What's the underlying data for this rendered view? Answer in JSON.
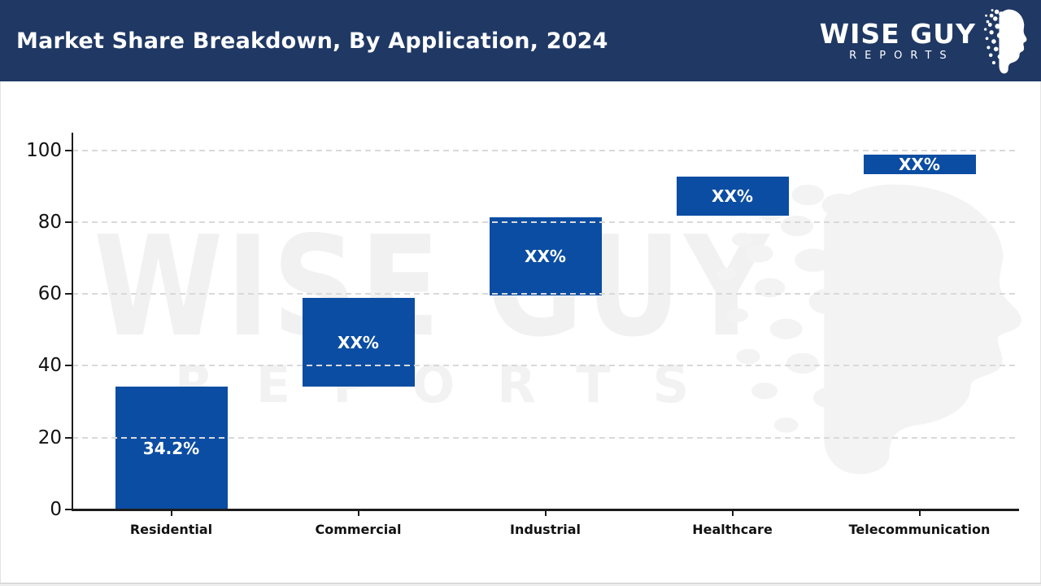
{
  "header": {
    "title": "Market Share Breakdown, By Application, 2024",
    "logo": {
      "wordmark": "WISE GUY",
      "subtext": "REPORTS"
    }
  },
  "watermark": {
    "wordmark": "WISE GUY",
    "subtext": "REPORTS"
  },
  "colors": {
    "header_bg": "#1f3864",
    "bar": "#0b4da2",
    "bar_label": "#ffffff",
    "axis": "#1c1c1c",
    "gridline": "#d9d9d9",
    "tick_text": "#111111",
    "watermark": "#f1f1f1"
  },
  "chart_data": {
    "type": "bar",
    "subtype": "floating-waterfall",
    "title": "Market Share Breakdown, By Application, 2024",
    "xlabel": "",
    "ylabel": "",
    "ylim": [
      0,
      105
    ],
    "yticks": [
      0,
      20,
      40,
      60,
      80,
      100
    ],
    "grid": "horizontal-dashed",
    "legend": "none",
    "categories": [
      "Residential",
      "Commercial",
      "Industrial",
      "Healthcare",
      "Telecommunication"
    ],
    "segments": [
      {
        "category": "Residential",
        "start": 0,
        "end": 34.2,
        "label": "34.2%"
      },
      {
        "category": "Commercial",
        "start": 34.2,
        "end": 58.9,
        "label": "XX%"
      },
      {
        "category": "Industrial",
        "start": 59.6,
        "end": 81.4,
        "label": "XX%"
      },
      {
        "category": "Healthcare",
        "start": 81.8,
        "end": 92.6,
        "label": "XX%"
      },
      {
        "category": "Telecommunication",
        "start": 93.3,
        "end": 98.8,
        "label": "XX%"
      }
    ]
  }
}
